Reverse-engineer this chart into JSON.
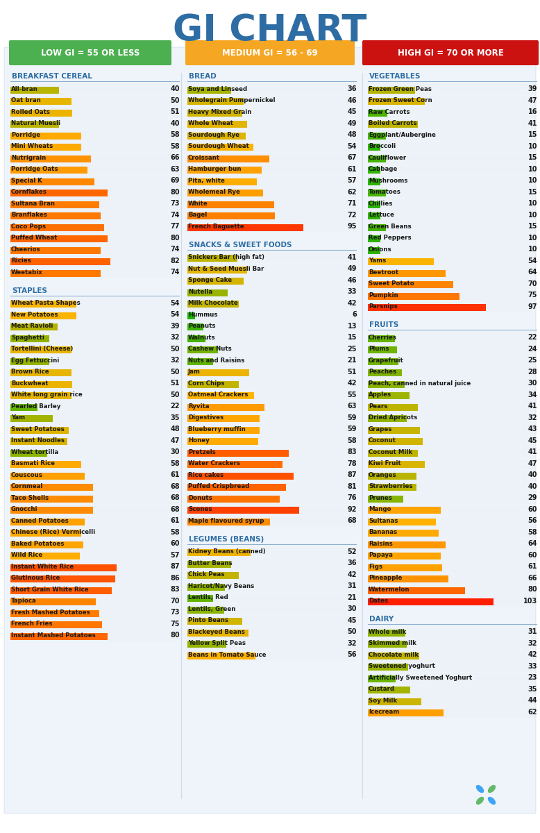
{
  "title": "GI CHART",
  "title_color": "#2E6DA4",
  "legend": [
    {
      "label": "LOW GI = 55 OR LESS",
      "bg": "#4CAF50",
      "text_color": "white"
    },
    {
      "label": "MEDIUM GI = 56 - 69",
      "bg": "#F5A623",
      "text_color": "white"
    },
    {
      "label": "HIGH GI = 70 OR MORE",
      "bg": "#D0021B",
      "text_color": "white"
    }
  ],
  "col1": {
    "sections": [
      {
        "header": "BREAKFAST CEREAL",
        "items": [
          [
            "All-bran",
            40
          ],
          [
            "Oat bran",
            50
          ],
          [
            "Rolled Oats",
            51
          ],
          [
            "Natural Muesli",
            40
          ],
          [
            "Porridge",
            58
          ],
          [
            "Mini Wheats",
            58
          ],
          [
            "Nutrigrain",
            66
          ],
          [
            "Porridge Oats",
            63
          ],
          [
            "Special K",
            69
          ],
          [
            "Cornflakes",
            80
          ],
          [
            "Sultana Bran",
            73
          ],
          [
            "Branflakes",
            74
          ],
          [
            "Coco Pops",
            77
          ],
          [
            "Puffed Wheat",
            80
          ],
          [
            "Cheerios",
            74
          ],
          [
            "Ricies",
            82
          ],
          [
            "Weetabix",
            74
          ]
        ]
      },
      {
        "header": "STAPLES",
        "items": [
          [
            "Wheat Pasta Shapes",
            54
          ],
          [
            "New Potatoes",
            54
          ],
          [
            "Meat Ravioli",
            39
          ],
          [
            "Spaghetti",
            32
          ],
          [
            "Tortellini (Cheese)",
            50
          ],
          [
            "Egg Fettuccini",
            32
          ],
          [
            "Brown Rice",
            50
          ],
          [
            "Buckwheat",
            51
          ],
          [
            "White long grain rice",
            50
          ],
          [
            "Pearled Barley",
            22
          ],
          [
            "Yam",
            35
          ],
          [
            "Sweet Potatoes",
            48
          ],
          [
            "Instant Noodles",
            47
          ],
          [
            "Wheat tortilla",
            30
          ],
          [
            "Basmati Rice",
            58
          ],
          [
            "Couscous",
            61
          ],
          [
            "Cornmeal",
            68
          ],
          [
            "Taco Shells",
            68
          ],
          [
            "Gnocchi",
            68
          ],
          [
            "Canned Potatoes",
            61
          ],
          [
            "Chinese (Rice) Vermicelli",
            58
          ],
          [
            "Baked Potatoes",
            60
          ],
          [
            "Wild Rice",
            57
          ],
          [
            "Instant White Rice",
            87
          ],
          [
            "Glutinous Rice",
            86
          ],
          [
            "Short Grain White Rice",
            83
          ],
          [
            "Tapioca",
            70
          ],
          [
            "Fresh Mashed Potatoes",
            73
          ],
          [
            "French Fries",
            75
          ],
          [
            "Instant Mashed Potatoes",
            80
          ]
        ]
      }
    ]
  },
  "col2": {
    "sections": [
      {
        "header": "BREAD",
        "items": [
          [
            "Soya and Linseed",
            36
          ],
          [
            "Wholegrain Pumpernickel",
            46
          ],
          [
            "Heavy Mixed Grain",
            45
          ],
          [
            "Whole Wheat",
            49
          ],
          [
            "Sourdough Rye",
            48
          ],
          [
            "Sourdough Wheat",
            54
          ],
          [
            "Croissant",
            67
          ],
          [
            "Hamburger bun",
            61
          ],
          [
            "Pita, white",
            57
          ],
          [
            "Wholemeal Rye",
            62
          ],
          [
            "White",
            71
          ],
          [
            "Bagel",
            72
          ],
          [
            "French Baguette",
            95
          ]
        ]
      },
      {
        "header": "SNACKS & SWEET FOODS",
        "items": [
          [
            "Snickers Bar (high fat)",
            41
          ],
          [
            "Nut & Seed Muesli Bar",
            49
          ],
          [
            "Sponge Cake",
            46
          ],
          [
            "Nutella",
            33
          ],
          [
            "Milk Chocolate",
            42
          ],
          [
            "Hummus",
            6
          ],
          [
            "Peanuts",
            13
          ],
          [
            "Walnuts",
            15
          ],
          [
            "Cashew Nuts",
            25
          ],
          [
            "Nuts and Raisins",
            21
          ],
          [
            "Jam",
            51
          ],
          [
            "Corn Chips",
            42
          ],
          [
            "Oatmeal Crackers",
            55
          ],
          [
            "Ryvita",
            63
          ],
          [
            "Digestives",
            59
          ],
          [
            "Blueberry muffin",
            59
          ],
          [
            "Honey",
            58
          ],
          [
            "Pretzels",
            83
          ],
          [
            "Water Crackers",
            78
          ],
          [
            "Rice cakes",
            87
          ],
          [
            "Puffed Crispbread",
            81
          ],
          [
            "Donuts",
            76
          ],
          [
            "Scones",
            92
          ],
          [
            "Maple flavoured syrup",
            68
          ]
        ]
      },
      {
        "header": "LEGUMES (BEANS)",
        "items": [
          [
            "Kidney Beans (canned)",
            52
          ],
          [
            "Butter Beans",
            36
          ],
          [
            "Chick Peas",
            42
          ],
          [
            "Haricot/Navy Beans",
            31
          ],
          [
            "Lentils, Red",
            21
          ],
          [
            "Lentils, Green",
            30
          ],
          [
            "Pinto Beans",
            45
          ],
          [
            "Blackeyed Beans",
            50
          ],
          [
            "Yellow Split Peas",
            32
          ],
          [
            "Beans in Tomato Sauce",
            56
          ]
        ]
      }
    ]
  },
  "col3": {
    "sections": [
      {
        "header": "VEGETABLES",
        "items": [
          [
            "Frozen Green Peas",
            39
          ],
          [
            "Frozen Sweet Corn",
            47
          ],
          [
            "Raw Carrots",
            16
          ],
          [
            "Boiled Carrots",
            41
          ],
          [
            "Eggplant/Aubergine",
            15
          ],
          [
            "Broccoli",
            10
          ],
          [
            "Cauliflower",
            15
          ],
          [
            "Cabbage",
            10
          ],
          [
            "Mushrooms",
            10
          ],
          [
            "Tomatoes",
            15
          ],
          [
            "Chillies",
            10
          ],
          [
            "Lettuce",
            10
          ],
          [
            "Green Beans",
            15
          ],
          [
            "Red Peppers",
            10
          ],
          [
            "Onions",
            10
          ],
          [
            "Yams",
            54
          ],
          [
            "Beetroot",
            64
          ],
          [
            "Sweet Potato",
            70
          ],
          [
            "Pumpkin",
            75
          ],
          [
            "Parsnips",
            97
          ]
        ]
      },
      {
        "header": "FRUITS",
        "items": [
          [
            "Cherries",
            22
          ],
          [
            "Plums",
            24
          ],
          [
            "Grapefruit",
            25
          ],
          [
            "Peaches",
            28
          ],
          [
            "Peach, canned in natural juice",
            30
          ],
          [
            "Apples",
            34
          ],
          [
            "Pears",
            41
          ],
          [
            "Dried Apricots",
            32
          ],
          [
            "Grapes",
            43
          ],
          [
            "Coconut",
            45
          ],
          [
            "Coconut Milk",
            41
          ],
          [
            "Kiwi Fruit",
            47
          ],
          [
            "Oranges",
            40
          ],
          [
            "Strawberries",
            40
          ],
          [
            "Prunes",
            29
          ],
          [
            "Mango",
            60
          ],
          [
            "Sultanas",
            56
          ],
          [
            "Bananas",
            58
          ],
          [
            "Raisins",
            64
          ],
          [
            "Papaya",
            60
          ],
          [
            "Figs",
            61
          ],
          [
            "Pineapple",
            66
          ],
          [
            "Watermelon",
            80
          ],
          [
            "Dates",
            103
          ]
        ]
      },
      {
        "header": "DAIRY",
        "items": [
          [
            "Whole milk",
            31
          ],
          [
            "Skimmed milk",
            32
          ],
          [
            "Chocolate milk",
            42
          ],
          [
            "Sweetened yoghurt",
            33
          ],
          [
            "Artificially Sweetened Yoghurt",
            23
          ],
          [
            "Custard",
            35
          ],
          [
            "Soy Milk",
            44
          ],
          [
            "Icecream",
            62
          ]
        ]
      }
    ]
  },
  "bg_color": "#EEF4FA",
  "header_color": "#2E6DA4",
  "bar_max": 110
}
